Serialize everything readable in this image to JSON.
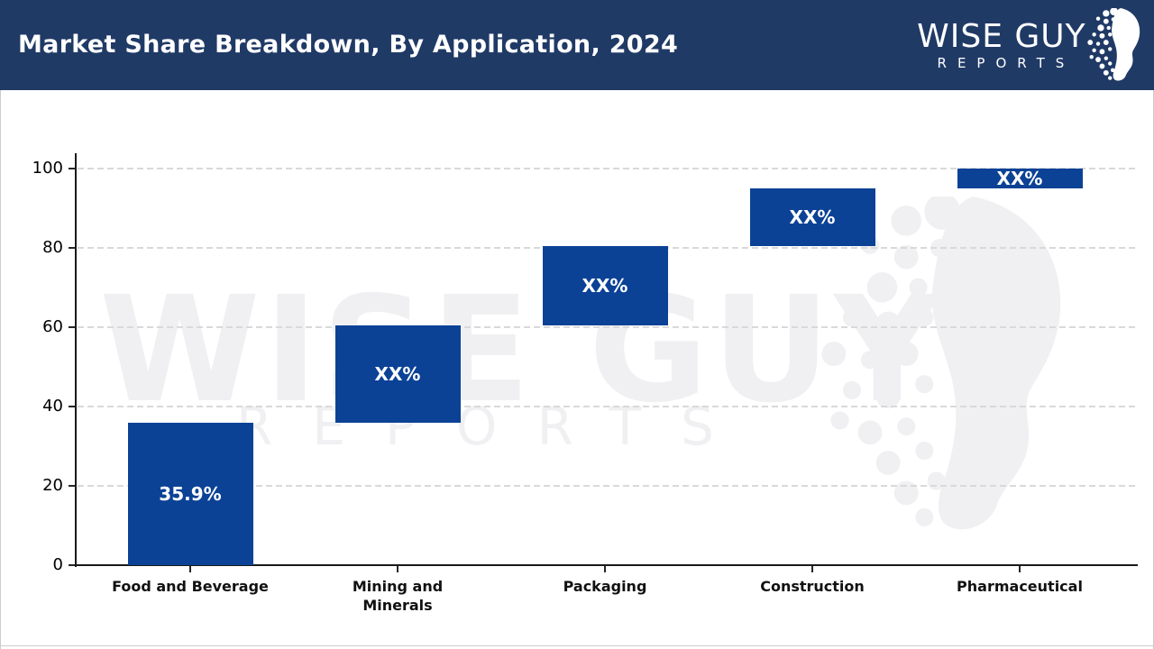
{
  "header": {
    "title": "Market Share Breakdown, By Application, 2024",
    "brand": {
      "name": "WISE GUY",
      "sub": "REPORTS"
    }
  },
  "watermark": {
    "line1": "WISE GUY",
    "line2": "REPORTS"
  },
  "colors": {
    "header_bg": "#203a66",
    "header_text": "#ffffff",
    "bar_blue": "#0b4296",
    "watermark_gray": "#f0f0f3",
    "grid_gray": "#d9d9d9",
    "axis_black": "#1a1a1a"
  },
  "chart_data": {
    "type": "bar",
    "variant": "waterfall",
    "title": "Market Share Breakdown, By Application, 2024",
    "categories": [
      "Food and Beverage",
      "Mining and Minerals",
      "Packaging",
      "Construction",
      "Pharmaceutical"
    ],
    "tick_labels": [
      "Food and Beverage",
      "Mining and\nMinerals",
      "Packaging",
      "Construction",
      "Pharmaceutical"
    ],
    "bar_ranges": [
      [
        0,
        35.9
      ],
      [
        35.9,
        60.5
      ],
      [
        60.5,
        80.5
      ],
      [
        80.5,
        95.0
      ],
      [
        95.0,
        100.0
      ]
    ],
    "segment_values": [
      35.9,
      24.6,
      20.0,
      14.5,
      5.0
    ],
    "bar_labels": [
      "35.9%",
      "XX%",
      "XX%",
      "XX%",
      "XX%"
    ],
    "xlabel": "",
    "ylabel": "",
    "ylim": [
      0,
      100
    ],
    "yticks": [
      0,
      20,
      40,
      60,
      80,
      100
    ],
    "bar_color": "#0b4296",
    "grid": "horizontal-dashed",
    "grid_color": "#d9d9d9",
    "legend": "none"
  }
}
